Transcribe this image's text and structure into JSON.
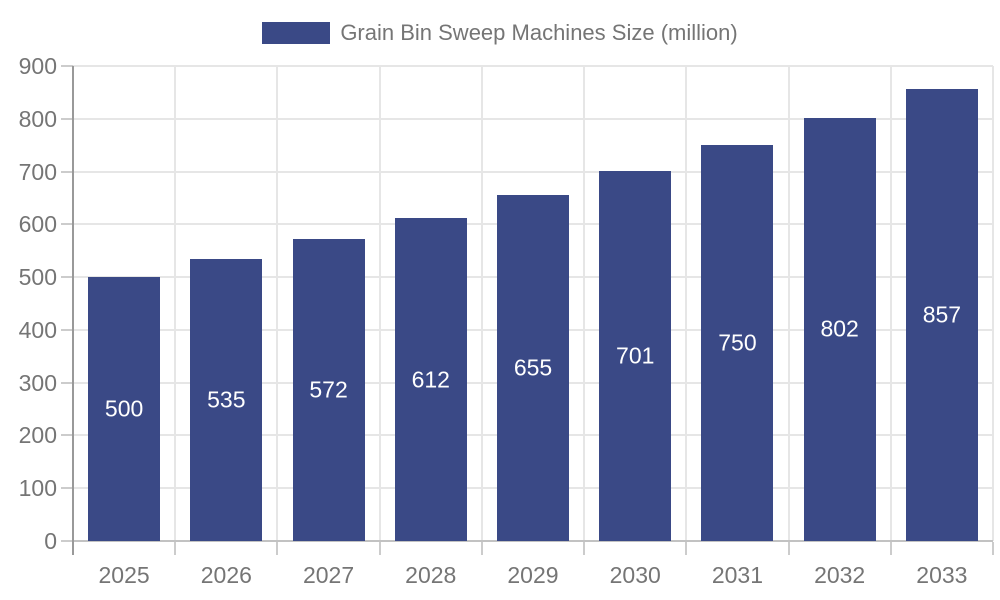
{
  "chart_data": {
    "type": "bar",
    "title": "",
    "legend": "Grain Bin Sweep Machines Size (million)",
    "categories": [
      "2025",
      "2026",
      "2027",
      "2028",
      "2029",
      "2030",
      "2031",
      "2032",
      "2033"
    ],
    "values": [
      500,
      535,
      572,
      612,
      655,
      701,
      750,
      802,
      857
    ],
    "value_labels": [
      "500",
      "535",
      "572",
      "612",
      "655",
      "701",
      "750",
      "802",
      "857"
    ],
    "ytick_labels": [
      "0",
      "100",
      "200",
      "300",
      "400",
      "500",
      "600",
      "700",
      "800",
      "900"
    ],
    "ylim": [
      0,
      900
    ],
    "ytick_step": 100,
    "xlabel": "",
    "ylabel": "",
    "grid": true,
    "legend_position": "top-center",
    "colors": {
      "bar": "#3A4986",
      "bar_value_text": "#ffffff",
      "axis_text": "#757575",
      "legend_text": "#757575",
      "gridline": "#e6e6e6",
      "gridline_zero": "#c2c2c2",
      "axis_line": "#999999",
      "tick": "#cccccc",
      "background": "#ffffff"
    }
  }
}
